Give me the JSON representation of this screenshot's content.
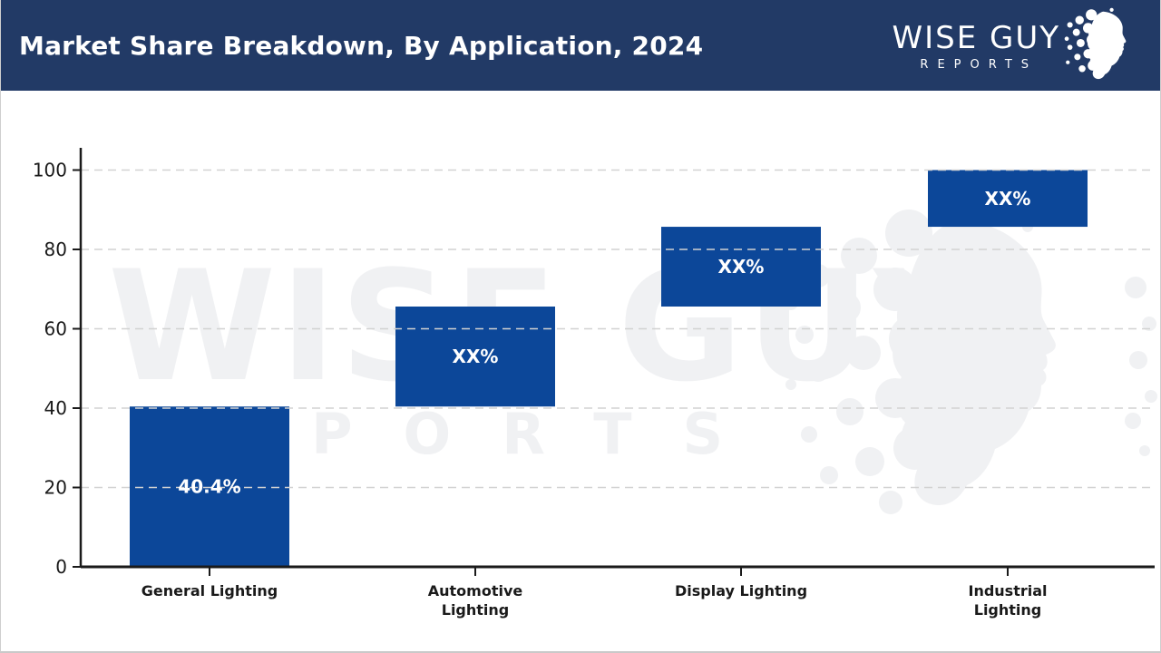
{
  "header": {
    "title": "Market Share Breakdown, By Application, 2024",
    "logo": {
      "primary": "WISE GUY",
      "secondary": "REPORTS"
    }
  },
  "watermark": {
    "primary": "WISE GUY",
    "secondary": "REPORTS"
  },
  "chart_data": {
    "type": "bar",
    "variant": "waterfall",
    "title": "Market Share Breakdown, By Application, 2024",
    "categories": [
      [
        "General Lighting"
      ],
      [
        "Automotive",
        "Lighting"
      ],
      [
        "Display Lighting"
      ],
      [
        "Industrial",
        "Lighting"
      ]
    ],
    "segments": [
      {
        "name": "General Lighting",
        "start": 0,
        "end": 40.4,
        "label": "40.4%"
      },
      {
        "name": "Automotive Lighting",
        "start": 40.4,
        "end": 65.6,
        "label": "XX%"
      },
      {
        "name": "Display Lighting",
        "start": 65.6,
        "end": 85.7,
        "label": "XX%"
      },
      {
        "name": "Industrial Lighting",
        "start": 85.7,
        "end": 100,
        "label": "XX%"
      }
    ],
    "y_ticks": [
      0,
      20,
      40,
      60,
      80,
      100
    ],
    "ylim": [
      0,
      100
    ],
    "xlabel": "",
    "ylabel": "",
    "grid": "horizontal-dashed",
    "legend": "none",
    "bar_color": "#0C4799",
    "bar_label_color": "#FFFFFF"
  },
  "colors": {
    "header_bg": "#223A66",
    "bar": "#0C4799",
    "grid": "#D2D2D2",
    "axis": "#1A1A1A",
    "watermark": "#F0F1F3",
    "page_border": "#C9C9C9"
  }
}
